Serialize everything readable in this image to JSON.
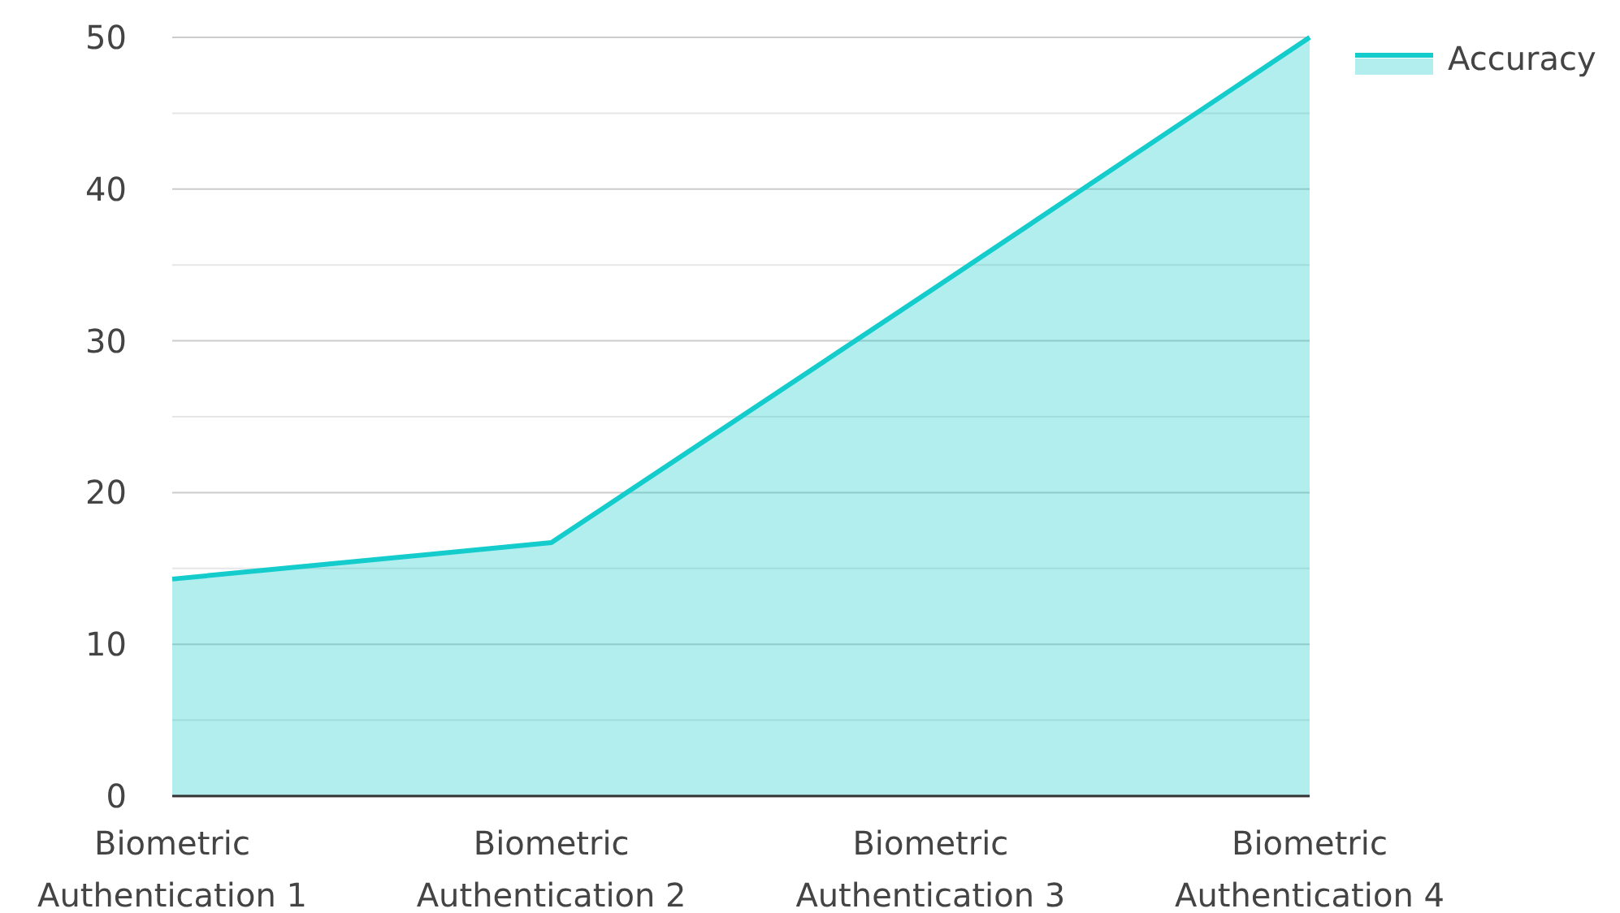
{
  "chart_data": {
    "type": "area",
    "categories": [
      "Biometric Authentication 1",
      "Biometric Authentication 2",
      "Biometric Authentication 3",
      "Biometric Authentication 4"
    ],
    "series": [
      {
        "name": "Accuracy",
        "color": "#14cccc",
        "values": [
          14.3,
          16.7,
          33.3,
          50
        ]
      }
    ],
    "ylim": [
      0,
      50
    ],
    "yticks": [
      0,
      {
        "value": 5,
        "label": null
      },
      10,
      {
        "value": 15,
        "label": null
      },
      20,
      {
        "value": 25,
        "label": null
      },
      30,
      {
        "value": 35,
        "label": null
      },
      40,
      {
        "value": 45,
        "label": null
      },
      50
    ],
    "grid": "y",
    "legend": "top right"
  }
}
